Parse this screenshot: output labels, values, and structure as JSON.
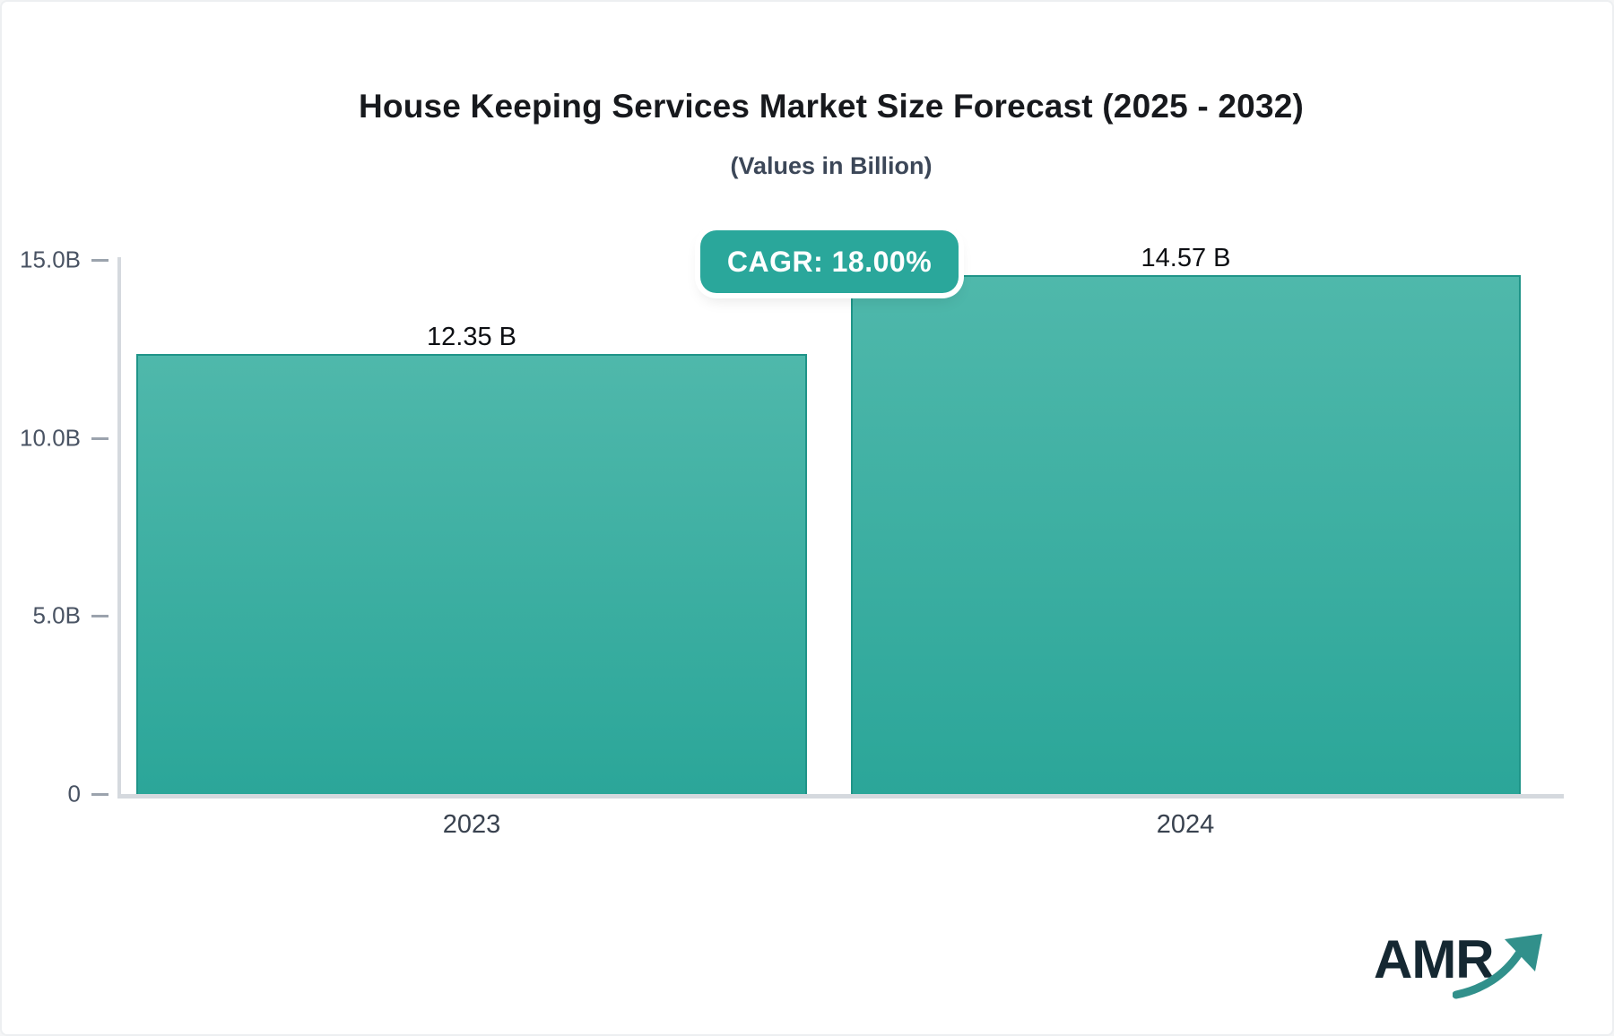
{
  "header": {
    "title": "House Keeping Services Market Size Forecast (2025 - 2032)",
    "subtitle": "(Values in Billion)"
  },
  "badge": {
    "label": "CAGR: 18.00%",
    "background": "#2aa79b",
    "text_color": "#ffffff"
  },
  "chart_data": {
    "type": "bar",
    "title": "House Keeping Services Market Size Forecast (2025 - 2032)",
    "subtitle": "(Values in Billion)",
    "annotation": "CAGR: 18.00%",
    "categories": [
      "2023",
      "2024"
    ],
    "values": [
      12.35,
      14.57
    ],
    "value_labels": [
      "12.35 B",
      "14.57 B"
    ],
    "xlabel": "",
    "ylabel": "",
    "ylim": [
      0,
      15
    ],
    "y_ticks": [
      {
        "value": 0,
        "label": "0"
      },
      {
        "value": 5,
        "label": "5.0B"
      },
      {
        "value": 10,
        "label": "10.0B"
      },
      {
        "value": 15,
        "label": "15.0B"
      }
    ],
    "grid": false,
    "legend": false,
    "bar_gradient_top": "#4fb8ab",
    "bar_gradient_bottom": "#2ba699",
    "bar_border_color": "#1f9488",
    "axis_color": "#d5d9de",
    "tick_color": "#9ba3ad",
    "tick_label_color": "#495363",
    "category_label_color": "#39424f",
    "value_label_color": "#0d0f13"
  },
  "logo": {
    "text": "AMR",
    "text_color": "#152832",
    "arrow_color": "#31908b"
  }
}
